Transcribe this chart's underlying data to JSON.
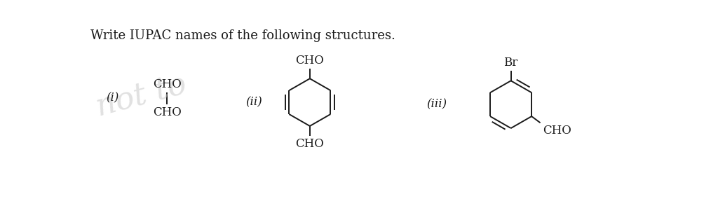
{
  "title": "Write IUPAC names of the following structures.",
  "title_fontsize": 13,
  "title_fontweight": "normal",
  "bg_color": "#ffffff",
  "label_i": "(i)",
  "label_ii": "(ii)",
  "label_iii": "(iii)",
  "watermark_text": "not to",
  "watermark_color": "#c8c8c8",
  "text_color": "#1a1a1a",
  "lw": 1.4,
  "fontsize": 12,
  "r2": 0.44,
  "r3": 0.44
}
